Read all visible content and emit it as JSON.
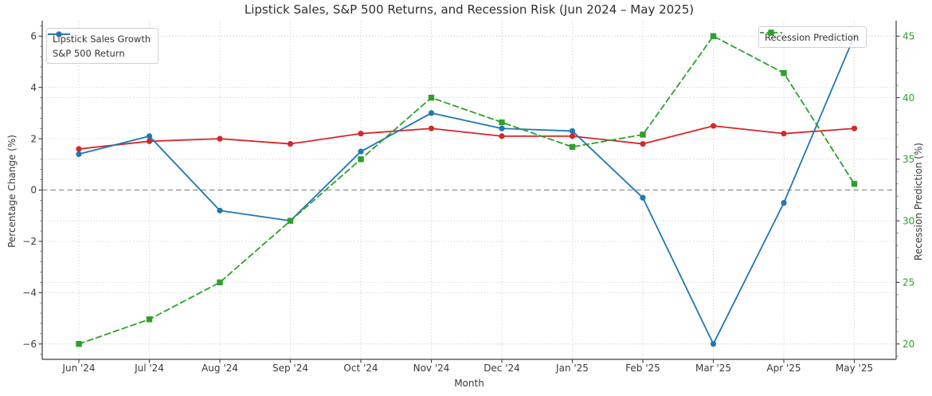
{
  "figure": {
    "title": "Lipstick Sales, S&P 500 Returns, and Recession Risk (Jun 2024 – May 2025)"
  },
  "chart_data": {
    "type": "line",
    "title": "Lipstick Sales, S&P 500 Returns, and Recession Risk (Jun 2024 – May 2025)",
    "x": [
      "Jun '24",
      "Jul '24",
      "Aug '24",
      "Sep '24",
      "Oct '24",
      "Nov '24",
      "Dec '24",
      "Jan '25",
      "Feb '25",
      "Mar '25",
      "Apr '25",
      "May '25"
    ],
    "xlabel": "Month",
    "ylabel_left": "Percentage Change (%)",
    "ylabel_right": "Recession Prediction (%)",
    "left_axis": {
      "ticks": [
        6,
        4,
        2,
        0,
        -2,
        -4,
        -6
      ],
      "lim": [
        -6.6,
        6.6
      ],
      "tick_color": "#3a3a3a",
      "minor_step": 0.4
    },
    "right_axis": {
      "ticks": [
        45,
        40,
        35,
        30,
        25,
        20
      ],
      "lim": [
        18.25,
        45.75
      ],
      "tick_color": "#2ca02c",
      "minor_step": 1
    },
    "series": [
      {
        "name": "Lipstick Sales Growth",
        "axis": "left",
        "color": "#d62728",
        "line": "solid",
        "marker": "circle",
        "values": [
          1.6,
          1.9,
          2.0,
          1.8,
          2.2,
          2.4,
          2.1,
          2.1,
          1.8,
          2.5,
          2.2,
          2.4
        ]
      },
      {
        "name": "S&P 500 Return",
        "axis": "left",
        "color": "#1f77b4",
        "line": "solid",
        "marker": "circle",
        "values": [
          1.4,
          2.1,
          -0.8,
          -1.2,
          1.5,
          3.0,
          2.4,
          2.3,
          -0.3,
          -6.0,
          -0.5,
          6.0
        ]
      },
      {
        "name": "Recession Prediction",
        "axis": "right",
        "color": "#2ca02c",
        "line": "dashed",
        "marker": "square",
        "values": [
          20,
          22,
          25,
          30,
          35,
          40,
          38,
          36,
          37,
          45,
          42,
          33
        ]
      }
    ],
    "zero_line": true,
    "grid": true,
    "legend_left_entries": [
      "Lipstick Sales Growth",
      "S&P 500 Return"
    ],
    "legend_right_entries": [
      "Recession Prediction"
    ],
    "colors": {
      "grid": "#cccccc",
      "zero_line": "#8c8c8c",
      "spine": "#3c3c3c"
    }
  }
}
